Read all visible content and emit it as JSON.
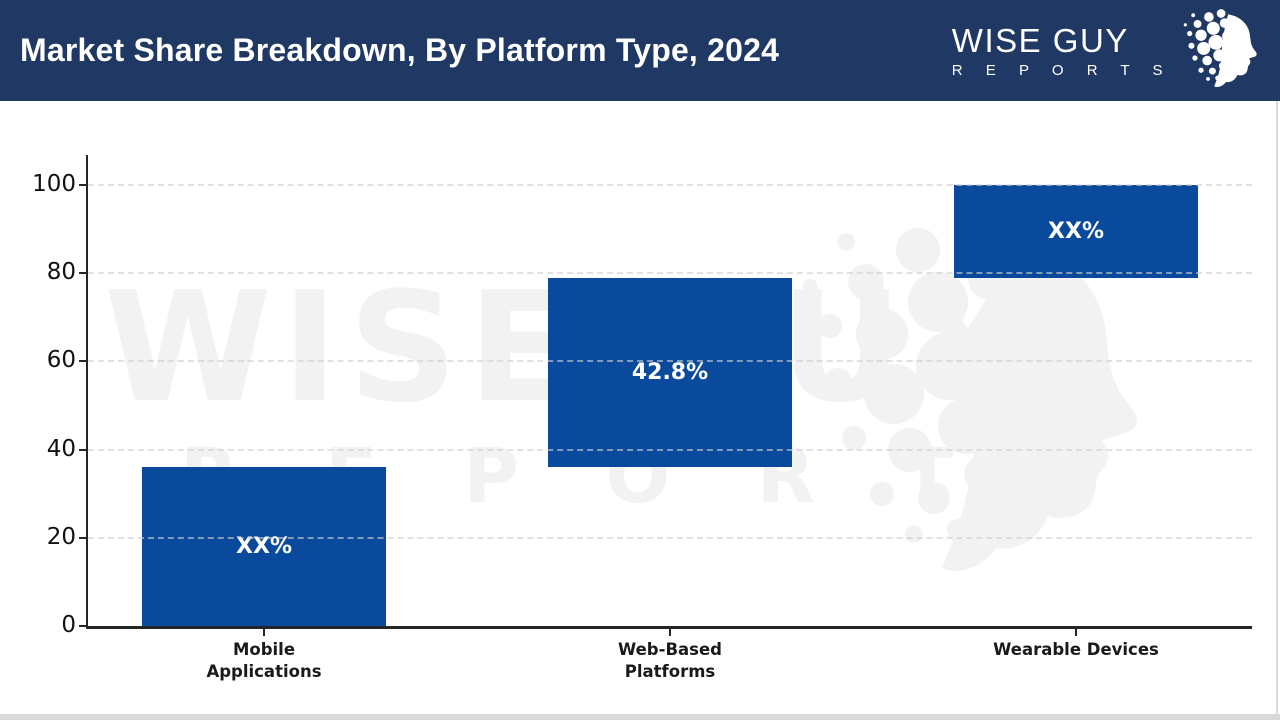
{
  "header": {
    "title": "Market Share Breakdown, By Platform Type, 2024",
    "logo": {
      "line1": "WISE GUY",
      "line2": "R E P O R T S"
    }
  },
  "watermark": {
    "line1": "WISE GUY",
    "line2": "R E P O R T S"
  },
  "colors": {
    "header_bg": "#1f3864",
    "bar": "#0a4a9d",
    "grid": "#cecece",
    "axis": "#262626",
    "bar_label": "#ffffff",
    "watermark": "#f2f2f2"
  },
  "chart_data": {
    "type": "bar",
    "subtype": "waterfall-floating-bars",
    "title": "Market Share Breakdown, By Platform Type, 2024",
    "categories": [
      "Mobile Applications",
      "Web-Based Platforms",
      "Wearable Devices"
    ],
    "x_display_labels": [
      "Mobile\nApplications",
      "Web-Based\nPlatforms",
      "Wearable Devices"
    ],
    "segments": [
      {
        "category": "Mobile Applications",
        "start": 0,
        "end": 36,
        "value_label": "XX%"
      },
      {
        "category": "Web-Based Platforms",
        "start": 36,
        "end": 78.8,
        "value_label": "42.8%"
      },
      {
        "category": "Wearable Devices",
        "start": 78.8,
        "end": 100,
        "value_label": "XX%"
      }
    ],
    "y_ticks": [
      0,
      20,
      40,
      60,
      80,
      100
    ],
    "ylim": [
      0,
      107
    ],
    "xlabel": "",
    "ylabel": "",
    "grid": "dashed-horizontal",
    "legend": "none"
  }
}
